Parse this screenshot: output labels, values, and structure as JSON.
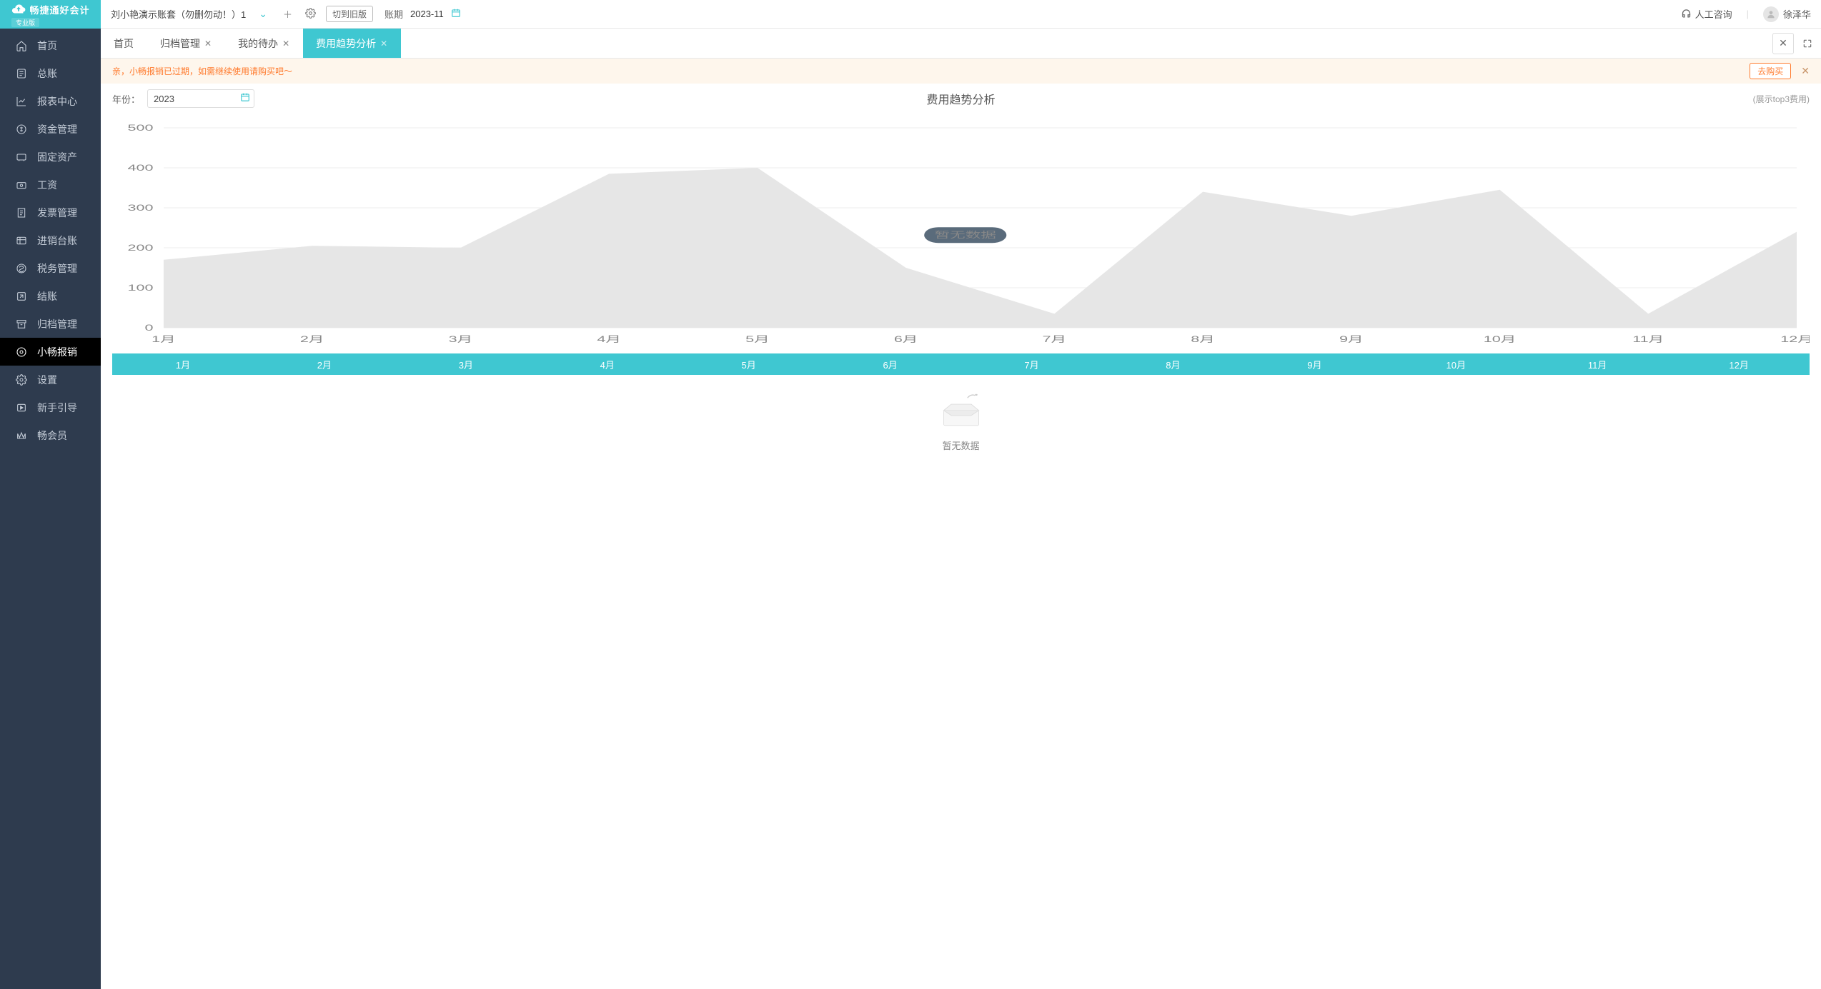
{
  "brand": {
    "name": "畅捷通好会计",
    "edition": "专业版"
  },
  "sidebar": {
    "items": [
      {
        "label": "首页",
        "icon": "home"
      },
      {
        "label": "总账",
        "icon": "ledger"
      },
      {
        "label": "报表中心",
        "icon": "report"
      },
      {
        "label": "资金管理",
        "icon": "fund"
      },
      {
        "label": "固定资产",
        "icon": "asset"
      },
      {
        "label": "工资",
        "icon": "salary"
      },
      {
        "label": "发票管理",
        "icon": "invoice"
      },
      {
        "label": "进销台账",
        "icon": "inout"
      },
      {
        "label": "税务管理",
        "icon": "tax"
      },
      {
        "label": "结账",
        "icon": "close"
      },
      {
        "label": "归档管理",
        "icon": "archive"
      },
      {
        "label": "小畅报销",
        "icon": "expense",
        "active": true
      },
      {
        "label": "设置",
        "icon": "settings"
      },
      {
        "label": "新手引导",
        "icon": "guide"
      },
      {
        "label": "畅会员",
        "icon": "vip"
      }
    ]
  },
  "topbar": {
    "account": "刘小艳演示账套（勿删勿动！）1",
    "old_version": "切到旧版",
    "period_label": "账期",
    "period_value": "2023-11",
    "consult": "人工咨询",
    "user": "徐泽华"
  },
  "tabs": [
    {
      "label": "首页",
      "closable": false
    },
    {
      "label": "归档管理",
      "closable": true
    },
    {
      "label": "我的待办",
      "closable": true
    },
    {
      "label": "费用趋势分析",
      "closable": true,
      "active": true
    }
  ],
  "notice": {
    "text": "亲，小畅报销已过期，如需继续使用请购买吧～",
    "buy": "去购买"
  },
  "page": {
    "year_label": "年份：",
    "year_value": "2023",
    "title": "费用趋势分析",
    "top3_hint": "(展示top3费用)"
  },
  "chart": {
    "type": "area",
    "background_color": "#ffffff",
    "area_fill": "#e6e6e6",
    "grid_color": "#eeeeee",
    "axis_text_color": "#888888",
    "ylim": [
      0,
      500
    ],
    "ytick_step": 100,
    "yticks": [
      0,
      100,
      200,
      300,
      400,
      500
    ],
    "x_categories": [
      "1月",
      "2月",
      "3月",
      "4月",
      "5月",
      "6月",
      "7月",
      "8月",
      "9月",
      "10月",
      "11月",
      "12月"
    ],
    "values": [
      170,
      205,
      200,
      385,
      400,
      150,
      35,
      340,
      280,
      345,
      35,
      240
    ],
    "tooltip_text": "暂无数据",
    "tooltip_bg": "#5a6b7b",
    "tooltip_text_color": "#ffffff",
    "label_fontsize": 12
  },
  "month_strip": {
    "bg": "#3fc7d1",
    "months": [
      "1月",
      "2月",
      "3月",
      "4月",
      "5月",
      "6月",
      "7月",
      "8月",
      "9月",
      "10月",
      "11月",
      "12月"
    ]
  },
  "empty": {
    "text": "暂无数据"
  },
  "colors": {
    "accent": "#3fc7d1",
    "sidebar_bg": "#2e3b4e",
    "warn": "#ff7b2e"
  }
}
